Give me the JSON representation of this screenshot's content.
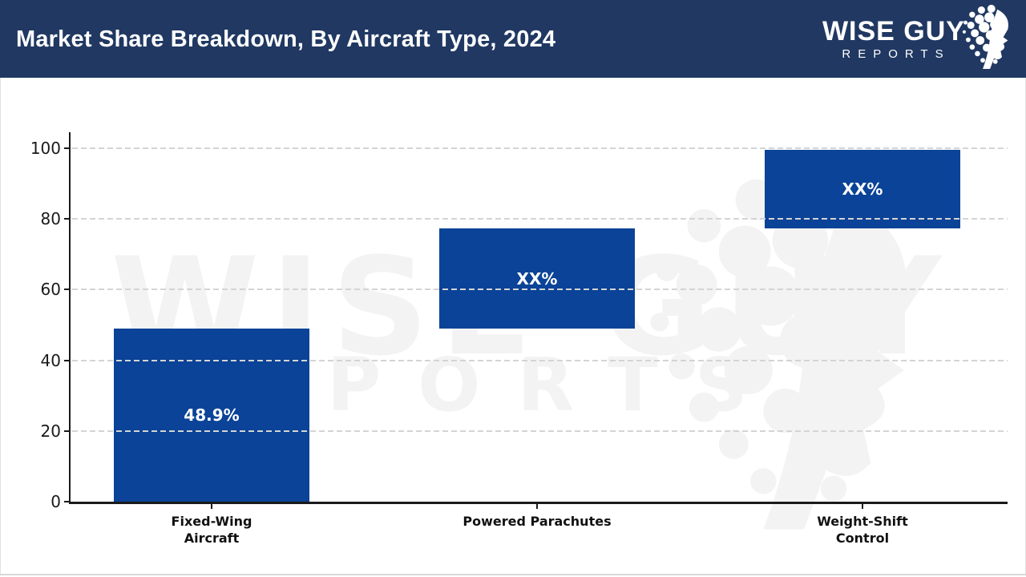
{
  "header": {
    "bg_color": "#203862",
    "title": "Market Share Breakdown, By Aircraft Type, 2024",
    "logo": {
      "line1": "WISE GUY",
      "line2": "REPORTS",
      "face_icon": "dotted-head-profile"
    }
  },
  "watermark": {
    "line1": "WISE GUY",
    "line2": "REPORTS",
    "color": "#f3f3f3"
  },
  "chart_data": {
    "type": "bar",
    "subtype": "stacked-waterfall",
    "title": "Market Share Breakdown, By Aircraft Type, 2024",
    "categories": [
      "Fixed-Wing\nAircraft",
      "Powered Parachutes",
      "Weight-Shift\nControl"
    ],
    "series": [
      {
        "name": "Fixed-Wing Aircraft",
        "start": 0,
        "end": 48.9,
        "label": "48.9%"
      },
      {
        "name": "Powered Parachutes",
        "start": 48.9,
        "end": 77.3,
        "label": "XX%"
      },
      {
        "name": "Weight-Shift Control",
        "start": 77.3,
        "end": 99.5,
        "label": "XX%"
      }
    ],
    "bar_color": "#0a4397",
    "bar_label_color": "#ffffff",
    "xlabel": "",
    "ylabel": "",
    "yticks": [
      0,
      20,
      40,
      60,
      80,
      100
    ],
    "ylim": [
      0,
      105
    ],
    "grid": "horizontal-dashed",
    "grid_color": "#d4d4d4",
    "axis_color": "#1a1a1a",
    "legend": "none"
  }
}
